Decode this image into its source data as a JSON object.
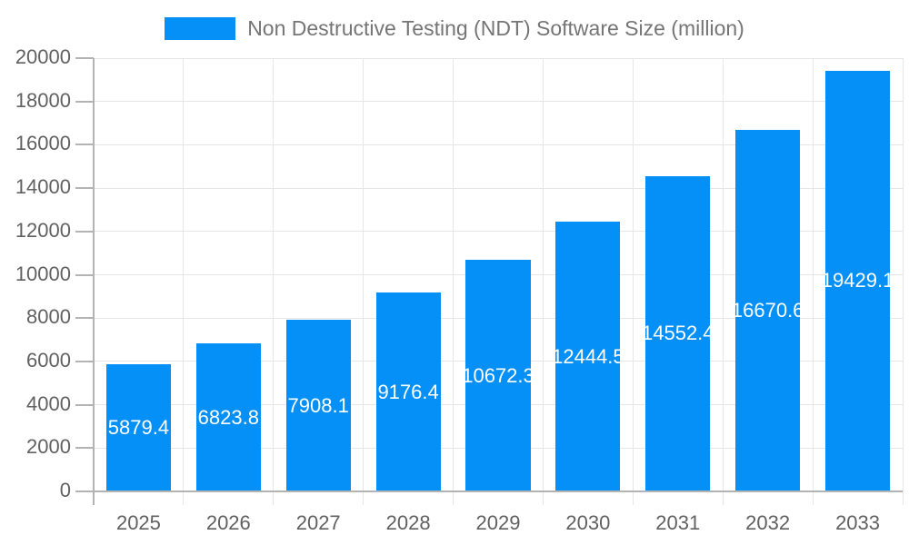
{
  "chart_data": {
    "type": "bar",
    "title": "",
    "legend": "Non Destructive Testing (NDT) Software Size (million)",
    "legend_position": "top",
    "categories": [
      "2025",
      "2026",
      "2027",
      "2028",
      "2029",
      "2030",
      "2031",
      "2032",
      "2033"
    ],
    "values": [
      5879.4,
      6823.8,
      7908.1,
      9176.4,
      10672.3,
      12444.5,
      14552.4,
      16670.6,
      19429.1
    ],
    "value_labels": [
      "5879.4",
      "6823.8",
      "7908.1",
      "9176.4",
      "10672.3",
      "12444.5",
      "14552.4",
      "16670.6",
      "19429.1"
    ],
    "xlabel": "",
    "ylabel": "",
    "ylim": [
      0,
      20000
    ],
    "ytick_step": 2000,
    "ytick_labels": [
      "0",
      "2000",
      "4000",
      "6000",
      "8000",
      "10000",
      "12000",
      "14000",
      "16000",
      "18000",
      "20000"
    ],
    "grid": true,
    "colors": {
      "bar": "#0590F8",
      "bar_value_label": "#ffffff",
      "axis_text": "#616161",
      "legend_text": "#757575",
      "gridline": "#e6e6e6",
      "axis_line": "#b3b3b3",
      "background": "#ffffff"
    }
  }
}
